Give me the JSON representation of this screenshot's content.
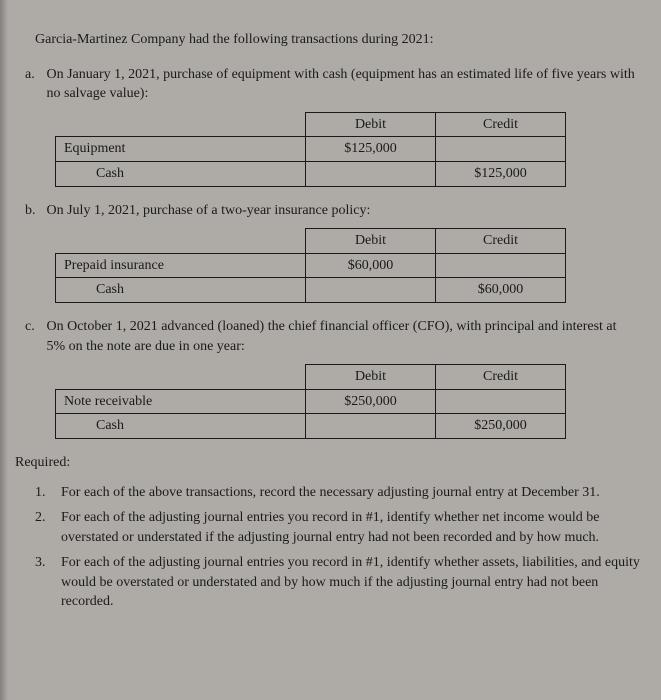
{
  "intro": "Garcia-Martinez Company had the following transactions during 2021:",
  "transactions": {
    "a": {
      "label": "a.",
      "text": "On January 1, 2021, purchase of equipment with cash (equipment has an estimated life of five years with no salvage value):",
      "table": {
        "headers": {
          "debit": "Debit",
          "credit": "Credit"
        },
        "row1": {
          "account": "Equipment",
          "debit": "$125,000",
          "credit": ""
        },
        "row2": {
          "account": "Cash",
          "debit": "",
          "credit": "$125,000"
        }
      }
    },
    "b": {
      "label": "b.",
      "text": "On July 1, 2021, purchase of a two-year insurance policy:",
      "table": {
        "headers": {
          "debit": "Debit",
          "credit": "Credit"
        },
        "row1": {
          "account": "Prepaid insurance",
          "debit": "$60,000",
          "credit": ""
        },
        "row2": {
          "account": "Cash",
          "debit": "",
          "credit": "$60,000"
        }
      }
    },
    "c": {
      "label": "c.",
      "text": "On October 1, 2021 advanced (loaned) the chief financial officer (CFO), with principal and interest at 5% on the note are due in one year:",
      "table": {
        "headers": {
          "debit": "Debit",
          "credit": "Credit"
        },
        "row1": {
          "account": "Note receivable",
          "debit": "$250,000",
          "credit": ""
        },
        "row2": {
          "account": "Cash",
          "debit": "",
          "credit": "$250,000"
        }
      }
    }
  },
  "required": {
    "heading": "Required:",
    "items": {
      "r1": {
        "num": "1.",
        "text": "For each of the above transactions, record the necessary adjusting journal entry at December 31."
      },
      "r2": {
        "num": "2.",
        "text": "For each of the adjusting journal entries you record in #1, identify whether net income would be overstated or understated if the adjusting journal entry had not been recorded and by how much."
      },
      "r3": {
        "num": "3.",
        "text": "For each of the adjusting journal entries you record in #1, identify whether assets, liabilities, and equity would be overstated or understated and by how much if the adjusting journal entry had not been recorded."
      }
    }
  }
}
